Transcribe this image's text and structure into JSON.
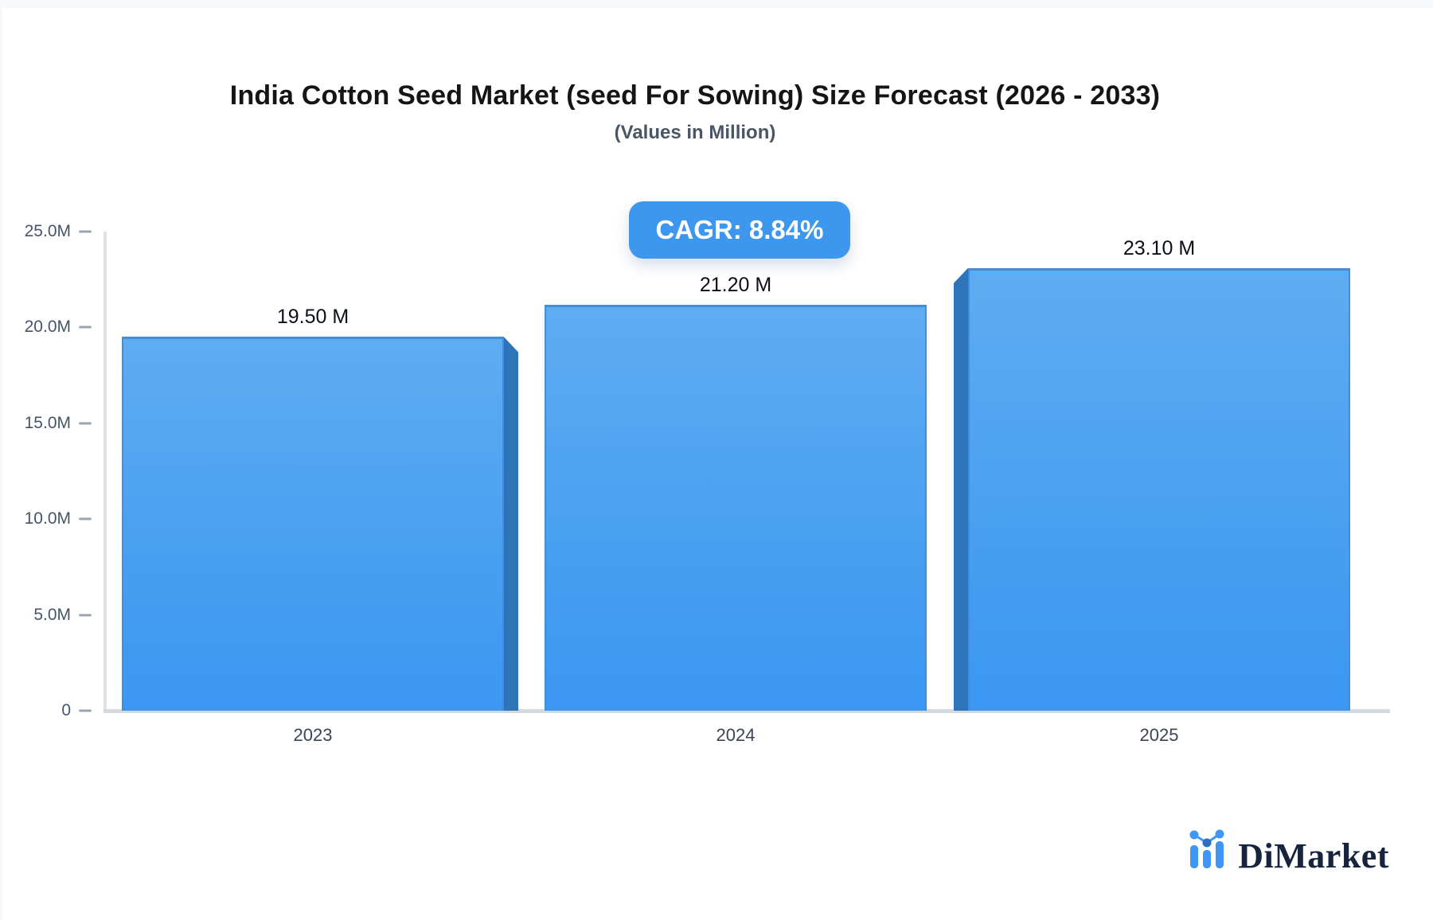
{
  "header": {
    "title": "India Cotton Seed Market (seed For Sowing) Size Forecast (2026 - 2033)",
    "subtitle": "(Values in Million)"
  },
  "badge": {
    "label": "CAGR: 8.84%",
    "bg_color": "#3E97EE",
    "text_color": "#FFFFFF"
  },
  "chart_data": {
    "type": "bar",
    "title": "India Cotton Seed Market (seed For Sowing) Size Forecast (2026 - 2033)",
    "subtitle": "(Values in Million)",
    "categories": [
      "2023",
      "2024",
      "2025"
    ],
    "values": [
      19.5,
      21.2,
      23.1
    ],
    "value_labels": [
      "19.50 M",
      "21.20 M",
      "23.10 M"
    ],
    "ylim": [
      0,
      25
    ],
    "y_ticks": [
      {
        "value": 0,
        "label": "0"
      },
      {
        "value": 5,
        "label": "5.0M"
      },
      {
        "value": 10,
        "label": "10.0M"
      },
      {
        "value": 15,
        "label": "15.0M"
      },
      {
        "value": 20,
        "label": "20.0M"
      },
      {
        "value": 25,
        "label": "25.0M"
      }
    ],
    "grid": false,
    "legend": "none",
    "bar_3d_side": [
      "right",
      "none",
      "left"
    ],
    "colors": {
      "bar_face_top": "#5FACF1",
      "bar_face_bottom": "#3B97F2",
      "bar_edge": "#3F8EE0",
      "bar_side_face": "#2E74B8",
      "axis_line": "#d4d9de",
      "tick_text": "#475569"
    }
  },
  "logo": {
    "text": "DiMarket",
    "icon": "mini-bar-chart-icon",
    "text_color": "#16243D",
    "icon_color": "#3F97F5",
    "icon_accent_color": "#2D6FC0"
  }
}
